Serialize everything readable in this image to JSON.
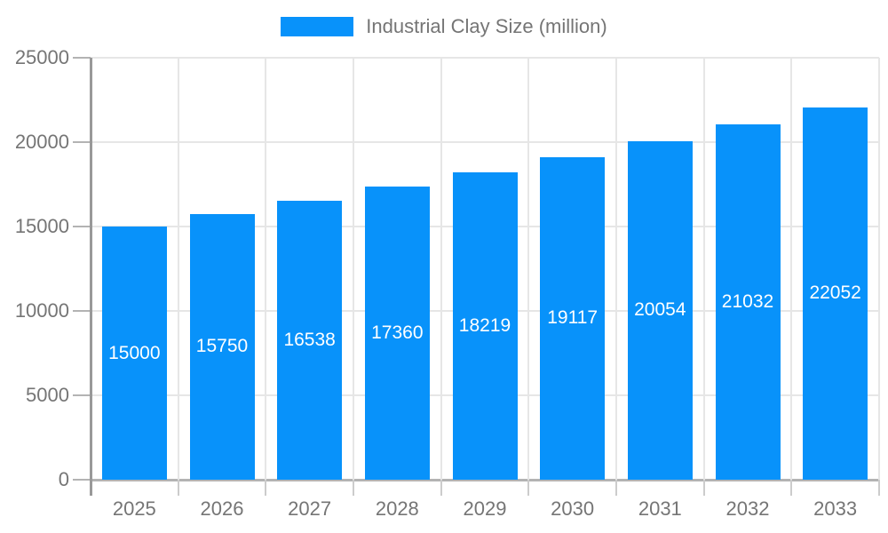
{
  "chart_data": {
    "type": "bar",
    "title": "Industrial Clay Size (million)",
    "series_name": "Industrial Clay Size (million)",
    "categories": [
      "2025",
      "2026",
      "2027",
      "2028",
      "2029",
      "2030",
      "2031",
      "2032",
      "2033"
    ],
    "values": [
      15000,
      15750,
      16538,
      17360,
      18219,
      19117,
      20054,
      21032,
      22052
    ],
    "xlabel": "",
    "ylabel": "",
    "ylim": [
      0,
      25000
    ],
    "y_ticks": [
      0,
      5000,
      10000,
      15000,
      20000,
      25000
    ],
    "grid": true,
    "legend_position": "top",
    "colors": {
      "bar": "#0892fa",
      "bar_label_text": "#ffffff",
      "axis_text": "#757575",
      "gridline": "#e6e6e6",
      "y_axis_line": "#999999",
      "x_axis_line": "#b3b3b3"
    }
  }
}
